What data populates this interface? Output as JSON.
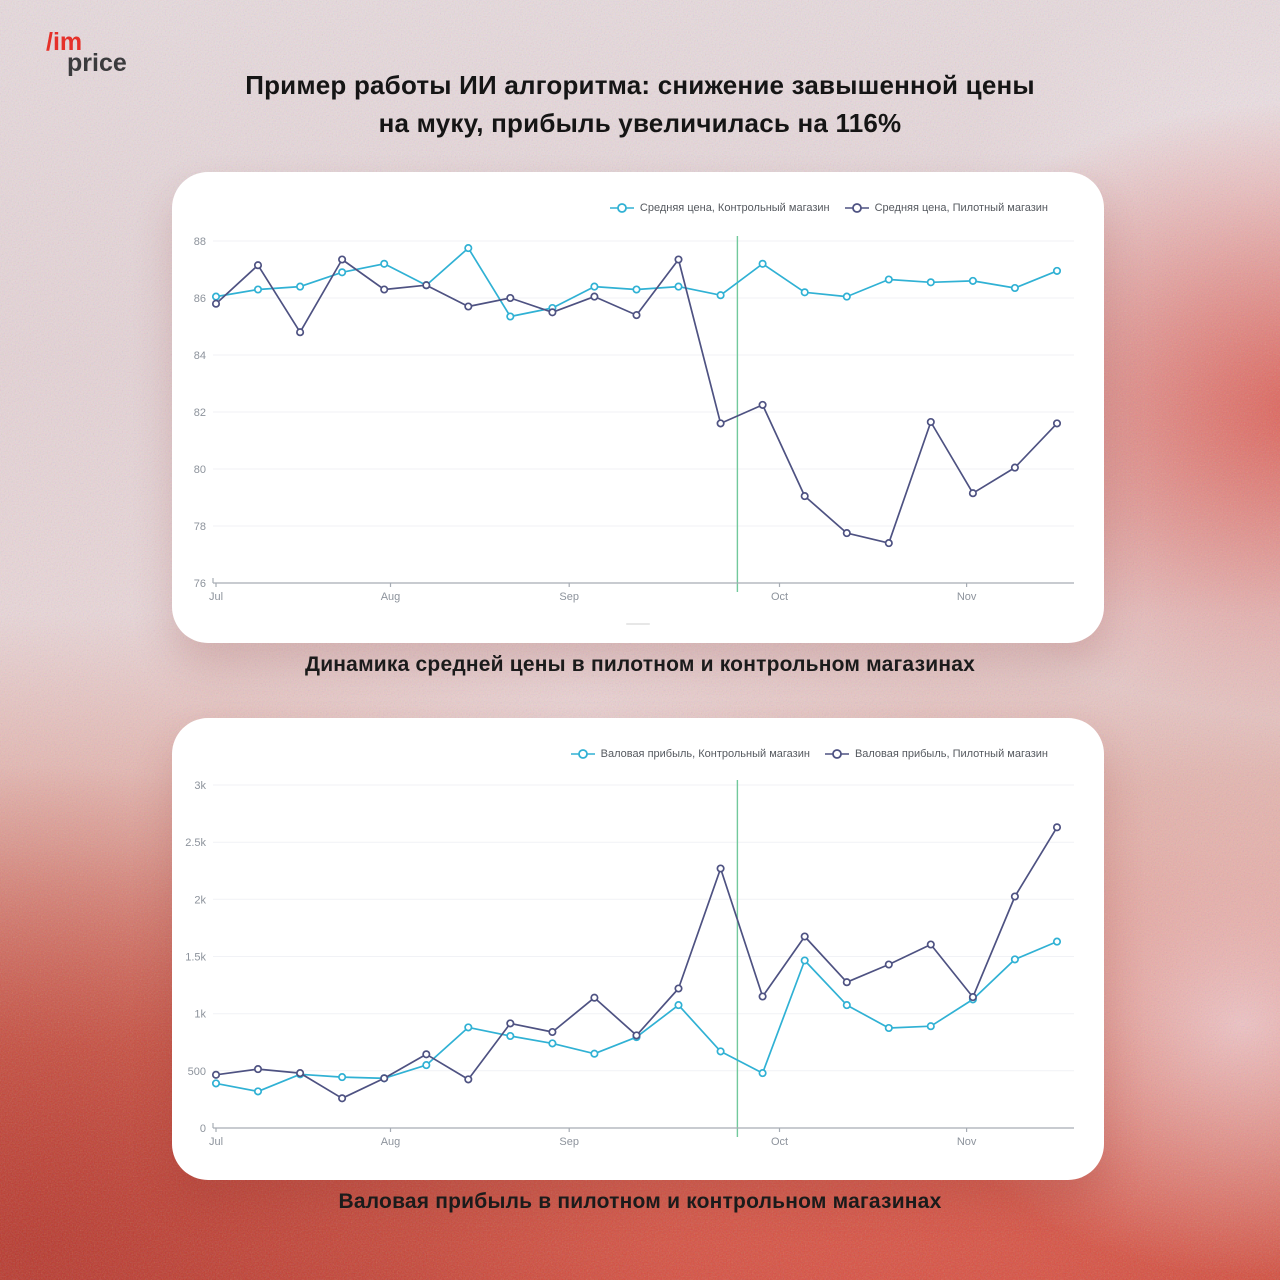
{
  "logo": {
    "part1": "/im",
    "part2": "price"
  },
  "title": {
    "line1": "Пример работы ИИ алгоритма: снижение завышенной цены",
    "line2": "на муку, прибыль увеличилась на 116%"
  },
  "colors": {
    "control_line": "#30b1d4",
    "pilot_line": "#4e5282",
    "vline_green": "#72c99c",
    "grid": "#f1f2f6",
    "axis": "#a6acb4",
    "logo_red": "#e5312a",
    "logo_dark": "#3b3b3d"
  },
  "chart_data": [
    {
      "type": "line",
      "caption": "Динамика средней цены в пилотном и контрольном магазинах",
      "legend_position": "top-right",
      "grid": true,
      "ylim": [
        76,
        88
      ],
      "yticks": [
        76,
        78,
        80,
        82,
        84,
        86,
        88
      ],
      "ytick_labels": [
        "76",
        "78",
        "80",
        "82",
        "84",
        "86",
        "88"
      ],
      "x_tick_labels": [
        "Jul",
        "Aug",
        "Sep",
        "Oct",
        "Nov"
      ],
      "x_tick_positions": [
        0,
        4.15,
        8.4,
        13.4,
        17.85
      ],
      "vline_index": 12.4,
      "series": [
        {
          "name": "Средняя цена, Контрольный магазин",
          "color": "#30b1d4",
          "values": [
            86.05,
            86.3,
            86.4,
            86.9,
            87.2,
            86.45,
            87.75,
            85.35,
            85.65,
            86.4,
            86.3,
            86.4,
            86.1,
            87.2,
            86.2,
            86.05,
            86.65,
            86.55,
            86.6,
            86.35,
            86.95
          ]
        },
        {
          "name": "Средняя цена, Пилотный магазин",
          "color": "#4e5282",
          "values": [
            85.8,
            87.15,
            84.8,
            87.35,
            86.3,
            86.45,
            85.7,
            86.0,
            85.5,
            86.05,
            85.4,
            87.35,
            81.6,
            82.25,
            79.05,
            77.75,
            77.4,
            81.65,
            79.15,
            80.05,
            81.6
          ]
        }
      ]
    },
    {
      "type": "line",
      "caption": "Валовая прибыль в пилотном и контрольном магазинах",
      "legend_position": "top-right",
      "grid": true,
      "ylim": [
        0,
        3000
      ],
      "yticks": [
        0,
        500,
        1000,
        1500,
        2000,
        2500,
        3000
      ],
      "ytick_labels": [
        "0",
        "500",
        "1k",
        "1.5k",
        "2k",
        "2.5k",
        "3k"
      ],
      "x_tick_labels": [
        "Jul",
        "Aug",
        "Sep",
        "Oct",
        "Nov"
      ],
      "x_tick_positions": [
        0,
        4.15,
        8.4,
        13.4,
        17.85
      ],
      "vline_index": 12.4,
      "series": [
        {
          "name": "Валовая прибыль, Контрольный магазин",
          "color": "#30b1d4",
          "values": [
            390,
            320,
            470,
            445,
            435,
            550,
            880,
            805,
            740,
            650,
            795,
            1075,
            670,
            480,
            1465,
            1075,
            875,
            890,
            1125,
            1475,
            1630
          ]
        },
        {
          "name": "Валовая прибыль, Пилотный магазин",
          "color": "#4e5282",
          "values": [
            465,
            515,
            480,
            260,
            435,
            645,
            425,
            915,
            840,
            1140,
            810,
            1220,
            2270,
            1150,
            1675,
            1275,
            1430,
            1605,
            1145,
            2025,
            2630
          ]
        }
      ]
    }
  ]
}
